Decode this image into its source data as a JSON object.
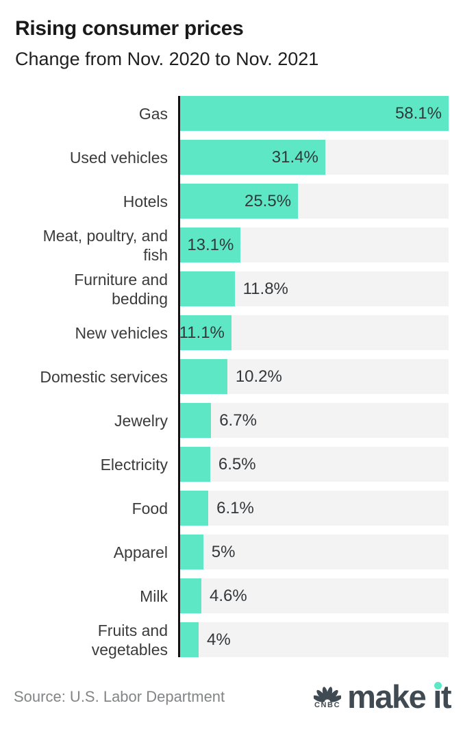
{
  "header": {
    "title": "Rising consumer prices",
    "subtitle": "Change from Nov. 2020 to Nov. 2021"
  },
  "chart_data": {
    "type": "bar",
    "orientation": "horizontal",
    "title": "Rising consumer prices",
    "subtitle": "Change from Nov. 2020 to Nov. 2021",
    "xlabel": "",
    "ylabel": "",
    "xlim": [
      0,
      58.1
    ],
    "grid": false,
    "legend": false,
    "bar_color": "#5ee7c4",
    "track_color": "#f3f3f3",
    "axis_color": "#121212",
    "categories": [
      "Gas",
      "Used vehicles",
      "Hotels",
      "Meat, poultry, and fish",
      "Furniture and bedding",
      "New vehicles",
      "Domestic services",
      "Jewelry",
      "Electricity",
      "Food",
      "Apparel",
      "Milk",
      "Fruits and vegetables"
    ],
    "category_display": [
      "Gas",
      "Used vehicles",
      "Hotels",
      "Meat, poultry, and\nfish",
      "Furniture and\nbedding",
      "New vehicles",
      "Domestic services",
      "Jewelry",
      "Electricity",
      "Food",
      "Apparel",
      "Milk",
      "Fruits and\nvegetables"
    ],
    "values": [
      58.1,
      31.4,
      25.5,
      13.1,
      11.8,
      11.1,
      10.2,
      6.7,
      6.5,
      6.1,
      5,
      4.6,
      4
    ],
    "value_labels": [
      "58.1%",
      "31.4%",
      "25.5%",
      "13.1%",
      "11.8%",
      "11.1%",
      "10.2%",
      "6.7%",
      "6.5%",
      "6.1%",
      "5%",
      "4.6%",
      "4%"
    ],
    "label_inside": [
      true,
      true,
      true,
      true,
      false,
      true,
      false,
      false,
      false,
      false,
      false,
      false,
      false
    ]
  },
  "footer": {
    "source": "Source: U.S. Labor Department",
    "logo": {
      "cnbc": "CNBC",
      "make_word": "make",
      "it_word": "ıt",
      "display": "CNBC make it",
      "accent_color": "#5ee7c4",
      "dark_color": "#404a52"
    }
  }
}
